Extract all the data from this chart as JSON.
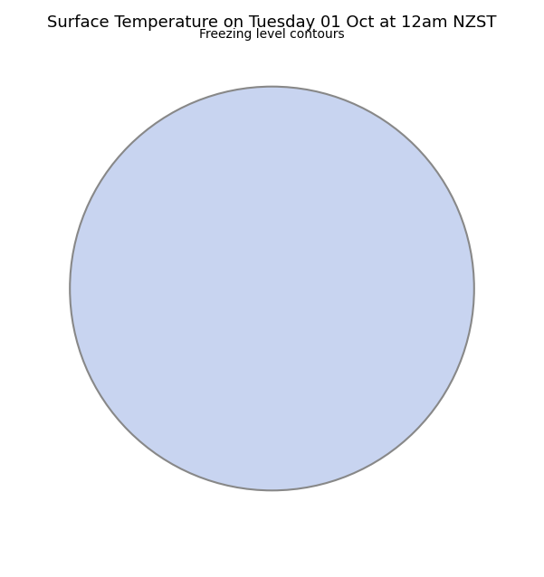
{
  "title": "Surface Temperature on Tuesday 01 Oct at 12am NZST",
  "subtitle": "Freezing level contours",
  "title_fontsize": 13,
  "subtitle_fontsize": 10,
  "bg_color": "#ffffff",
  "ocean_color": "#c8d4f0",
  "map_bg": "#dde5f8",
  "contour_color_red": "#ff0000",
  "grid_color": "#aaaacc",
  "border_color": "#888888",
  "figsize": [
    6.01,
    6.38
  ],
  "dpi": 100
}
